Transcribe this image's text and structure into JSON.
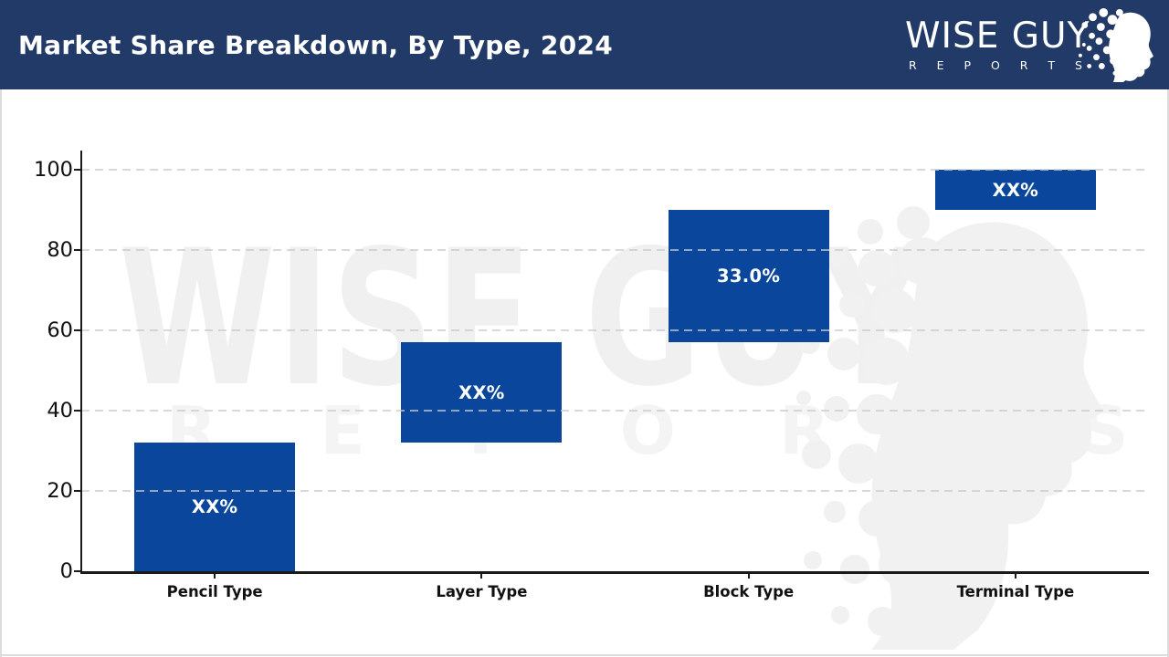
{
  "header": {
    "title": "Market Share Breakdown, By Type, 2024",
    "bg_color": "#223a68",
    "logo": {
      "wordmark": "WISE GUY",
      "subtext": "R E P O R T S",
      "face_icon": "dotted-head-profile"
    }
  },
  "watermark": {
    "line1": "WISE GUY",
    "line2": "R E P O R T S"
  },
  "chart_data": {
    "type": "bar",
    "subtype": "floating-waterfall",
    "title": "Market Share Breakdown, By Type, 2024",
    "categories": [
      "Pencil Type",
      "Layer Type",
      "Block Type",
      "Terminal Type"
    ],
    "segments": [
      {
        "category": "Pencil Type",
        "start": 0,
        "end": 32,
        "height": 32,
        "label": "XX%"
      },
      {
        "category": "Layer Type",
        "start": 32,
        "end": 57,
        "height": 25,
        "label": "XX%"
      },
      {
        "category": "Block Type",
        "start": 57,
        "end": 90,
        "height": 33,
        "label": "33.0%"
      },
      {
        "category": "Terminal Type",
        "start": 90,
        "end": 100,
        "height": 10,
        "label": "XX%"
      }
    ],
    "xlabel": "",
    "ylabel": "",
    "ylim": [
      0,
      105
    ],
    "yticks": [
      0,
      20,
      40,
      60,
      80,
      100
    ],
    "grid": "horizontal dashed lines drawn above bars",
    "legend": "none",
    "bar_color": "#0a479c",
    "bar_label_color": "#ffffff",
    "axis_color": "#1a1a1a",
    "grid_color": "#cacaca",
    "watermark_color": "#f0f0f0"
  }
}
